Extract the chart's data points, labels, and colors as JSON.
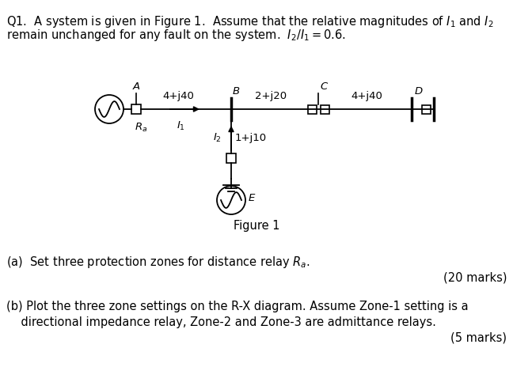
{
  "imp_AB": "4+j40",
  "imp_BC": "2+j20",
  "imp_CD": "4+j40",
  "imp_BE": "1+j10",
  "node_A": "A",
  "node_B": "B",
  "node_C": "C",
  "node_D": "D",
  "node_E": "E",
  "fig_caption": "Figure 1",
  "part_a": "(a)  Set three protection zones for distance relay R",
  "part_a_end": ".",
  "marks_a": "(20 marks)",
  "part_b_line1": "(b) Plot the three zone settings on the R-X diagram. Assume Zone-1 setting is a",
  "part_b_line2": "    directional impedance relay, Zone-2 and Zone-3 are admittance relays.",
  "marks_b": "(5 marks)",
  "background_color": "#ffffff",
  "text_color": "#000000",
  "line_color": "#000000",
  "font_size_body": 10.5,
  "font_size_circuit": 9.5,
  "font_size_node": 9.5
}
